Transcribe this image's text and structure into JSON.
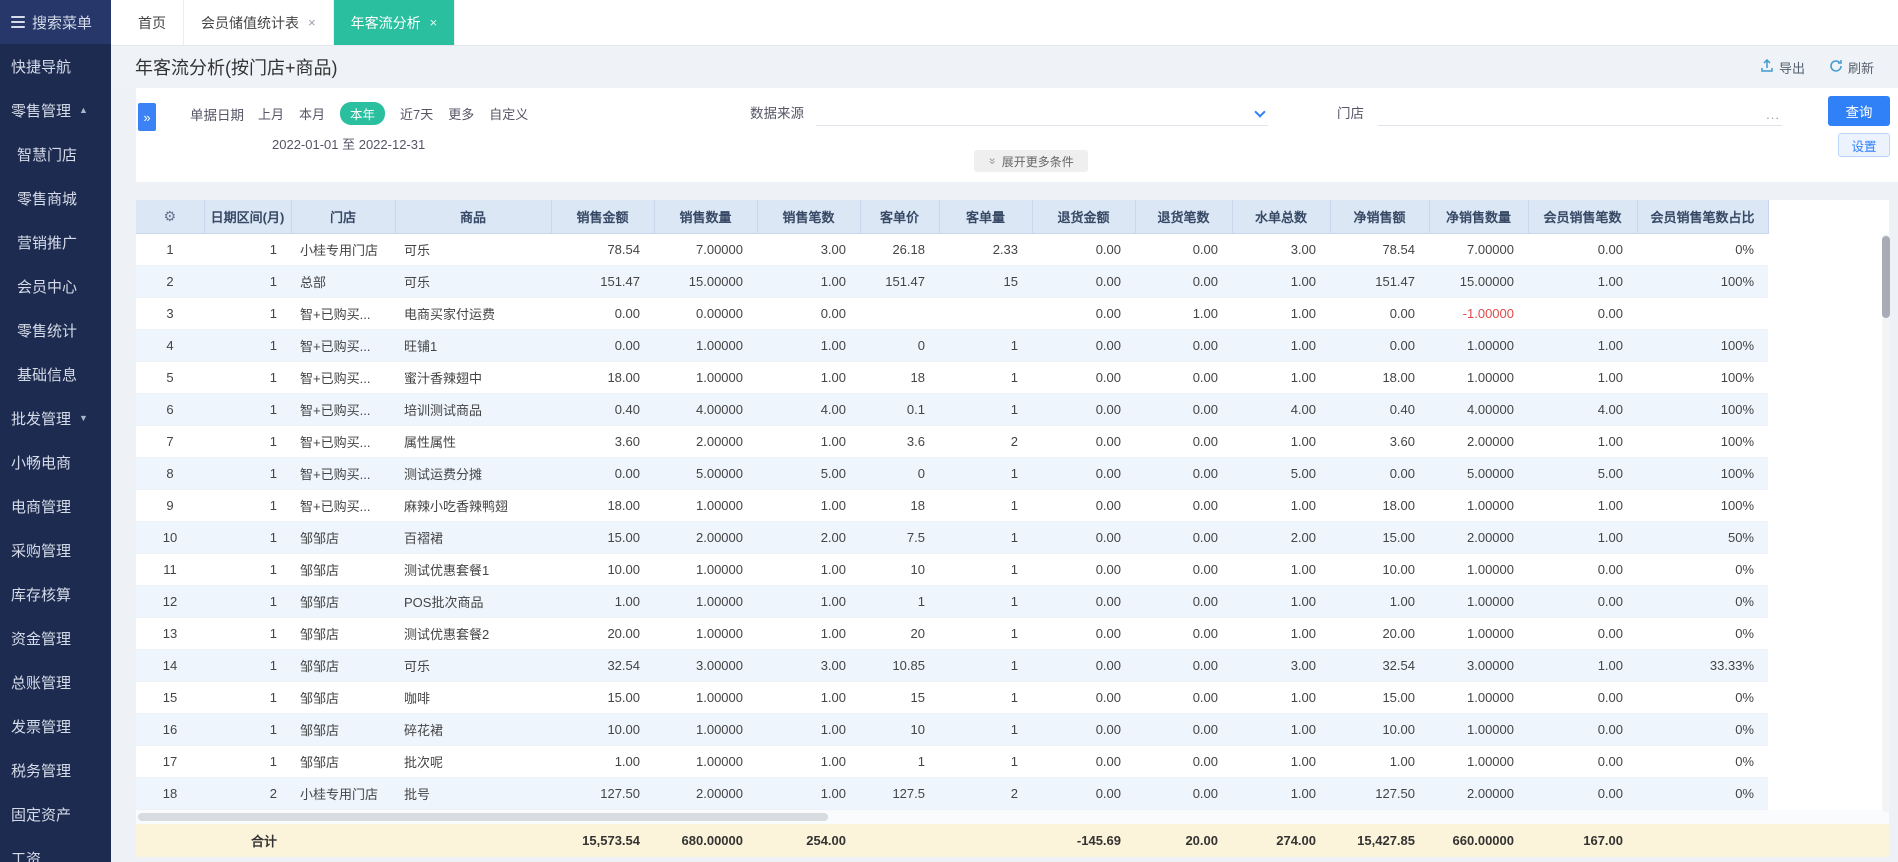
{
  "sidebar": {
    "items": [
      {
        "label": "搜索菜单",
        "icon": "menu"
      },
      {
        "label": "快捷导航"
      },
      {
        "label": "零售管理",
        "caret": "up"
      },
      {
        "label": "智慧门店",
        "sub": true
      },
      {
        "label": "零售商城",
        "sub": true
      },
      {
        "label": "营销推广",
        "sub": true
      },
      {
        "label": "会员中心",
        "sub": true
      },
      {
        "label": "零售统计",
        "sub": true
      },
      {
        "label": "基础信息",
        "sub": true
      },
      {
        "label": "批发管理",
        "caret": "down"
      },
      {
        "label": "小畅电商"
      },
      {
        "label": "电商管理"
      },
      {
        "label": "采购管理"
      },
      {
        "label": "库存核算"
      },
      {
        "label": "资金管理"
      },
      {
        "label": "总账管理"
      },
      {
        "label": "发票管理"
      },
      {
        "label": "税务管理"
      },
      {
        "label": "固定资产"
      },
      {
        "label": "工资"
      }
    ]
  },
  "tabs": [
    {
      "label": "首页",
      "closable": false,
      "active": false
    },
    {
      "label": "会员储值统计表",
      "closable": true,
      "active": false
    },
    {
      "label": "年客流分析",
      "closable": true,
      "active": true
    }
  ],
  "header": {
    "title": "年客流分析(按门店+商品)",
    "export_label": "导出",
    "refresh_label": "刷新"
  },
  "filters": {
    "date_label": "单据日期",
    "date_options": [
      "上月",
      "本月",
      "本年",
      "近7天",
      "更多",
      "自定义"
    ],
    "date_selected": "本年",
    "date_range": "2022-01-01 至 2022-12-31",
    "source_label": "数据来源",
    "store_label": "门店",
    "query_label": "查询",
    "settings_label": "设置",
    "expand_label": "展开更多条件",
    "store_more": "..."
  },
  "table": {
    "columns": [
      "日期区间(月)",
      "门店",
      "商品",
      "销售金额",
      "销售数量",
      "销售笔数",
      "客单价",
      "客单量",
      "退货金额",
      "退货笔数",
      "水单总数",
      "净销售额",
      "净销售数量",
      "会员销售笔数",
      "会员销售笔数占比"
    ],
    "rows": [
      [
        "1",
        "1",
        "小桂专用门店",
        "可乐",
        "78.54",
        "7.00000",
        "3.00",
        "26.18",
        "2.33",
        "0.00",
        "0.00",
        "3.00",
        "78.54",
        "7.00000",
        "0.00",
        "0%"
      ],
      [
        "2",
        "1",
        "总部",
        "可乐",
        "151.47",
        "15.00000",
        "1.00",
        "151.47",
        "15",
        "0.00",
        "0.00",
        "1.00",
        "151.47",
        "15.00000",
        "1.00",
        "100%"
      ],
      [
        "3",
        "1",
        "智+已购买...",
        "电商买家付运费",
        "0.00",
        "0.00000",
        "0.00",
        "",
        "",
        "0.00",
        "1.00",
        "1.00",
        "0.00",
        "-1.00000",
        "0.00",
        ""
      ],
      [
        "4",
        "1",
        "智+已购买...",
        "旺铺1",
        "0.00",
        "1.00000",
        "1.00",
        "0",
        "1",
        "0.00",
        "0.00",
        "1.00",
        "0.00",
        "1.00000",
        "1.00",
        "100%"
      ],
      [
        "5",
        "1",
        "智+已购买...",
        "蜜汁香辣翅中",
        "18.00",
        "1.00000",
        "1.00",
        "18",
        "1",
        "0.00",
        "0.00",
        "1.00",
        "18.00",
        "1.00000",
        "1.00",
        "100%"
      ],
      [
        "6",
        "1",
        "智+已购买...",
        "培训测试商品",
        "0.40",
        "4.00000",
        "4.00",
        "0.1",
        "1",
        "0.00",
        "0.00",
        "4.00",
        "0.40",
        "4.00000",
        "4.00",
        "100%"
      ],
      [
        "7",
        "1",
        "智+已购买...",
        "属性属性",
        "3.60",
        "2.00000",
        "1.00",
        "3.6",
        "2",
        "0.00",
        "0.00",
        "1.00",
        "3.60",
        "2.00000",
        "1.00",
        "100%"
      ],
      [
        "8",
        "1",
        "智+已购买...",
        "测试运费分摊",
        "0.00",
        "5.00000",
        "5.00",
        "0",
        "1",
        "0.00",
        "0.00",
        "5.00",
        "0.00",
        "5.00000",
        "5.00",
        "100%"
      ],
      [
        "9",
        "1",
        "智+已购买...",
        "麻辣小吃香辣鸭翅",
        "18.00",
        "1.00000",
        "1.00",
        "18",
        "1",
        "0.00",
        "0.00",
        "1.00",
        "18.00",
        "1.00000",
        "1.00",
        "100%"
      ],
      [
        "10",
        "1",
        "邹邹店",
        "百褶裙",
        "15.00",
        "2.00000",
        "2.00",
        "7.5",
        "1",
        "0.00",
        "0.00",
        "2.00",
        "15.00",
        "2.00000",
        "1.00",
        "50%"
      ],
      [
        "11",
        "1",
        "邹邹店",
        "测试优惠套餐1",
        "10.00",
        "1.00000",
        "1.00",
        "10",
        "1",
        "0.00",
        "0.00",
        "1.00",
        "10.00",
        "1.00000",
        "0.00",
        "0%"
      ],
      [
        "12",
        "1",
        "邹邹店",
        "POS批次商品",
        "1.00",
        "1.00000",
        "1.00",
        "1",
        "1",
        "0.00",
        "0.00",
        "1.00",
        "1.00",
        "1.00000",
        "0.00",
        "0%"
      ],
      [
        "13",
        "1",
        "邹邹店",
        "测试优惠套餐2",
        "20.00",
        "1.00000",
        "1.00",
        "20",
        "1",
        "0.00",
        "0.00",
        "1.00",
        "20.00",
        "1.00000",
        "0.00",
        "0%"
      ],
      [
        "14",
        "1",
        "邹邹店",
        "可乐",
        "32.54",
        "3.00000",
        "3.00",
        "10.85",
        "1",
        "0.00",
        "0.00",
        "3.00",
        "32.54",
        "3.00000",
        "1.00",
        "33.33%"
      ],
      [
        "15",
        "1",
        "邹邹店",
        "咖啡",
        "15.00",
        "1.00000",
        "1.00",
        "15",
        "1",
        "0.00",
        "0.00",
        "1.00",
        "15.00",
        "1.00000",
        "0.00",
        "0%"
      ],
      [
        "16",
        "1",
        "邹邹店",
        "碎花裙",
        "10.00",
        "1.00000",
        "1.00",
        "10",
        "1",
        "0.00",
        "0.00",
        "1.00",
        "10.00",
        "1.00000",
        "0.00",
        "0%"
      ],
      [
        "17",
        "1",
        "邹邹店",
        "批次呢",
        "1.00",
        "1.00000",
        "1.00",
        "1",
        "1",
        "0.00",
        "0.00",
        "1.00",
        "1.00",
        "1.00000",
        "0.00",
        "0%"
      ],
      [
        "18",
        "2",
        "小桂专用门店",
        "批号",
        "127.50",
        "2.00000",
        "1.00",
        "127.5",
        "2",
        "0.00",
        "0.00",
        "1.00",
        "127.50",
        "2.00000",
        "0.00",
        "0%"
      ]
    ],
    "total": [
      "",
      "合计",
      "",
      "",
      "15,573.54",
      "680.00000",
      "254.00",
      "",
      "",
      "-145.69",
      "20.00",
      "274.00",
      "15,427.85",
      "660.00000",
      "167.00",
      ""
    ]
  }
}
